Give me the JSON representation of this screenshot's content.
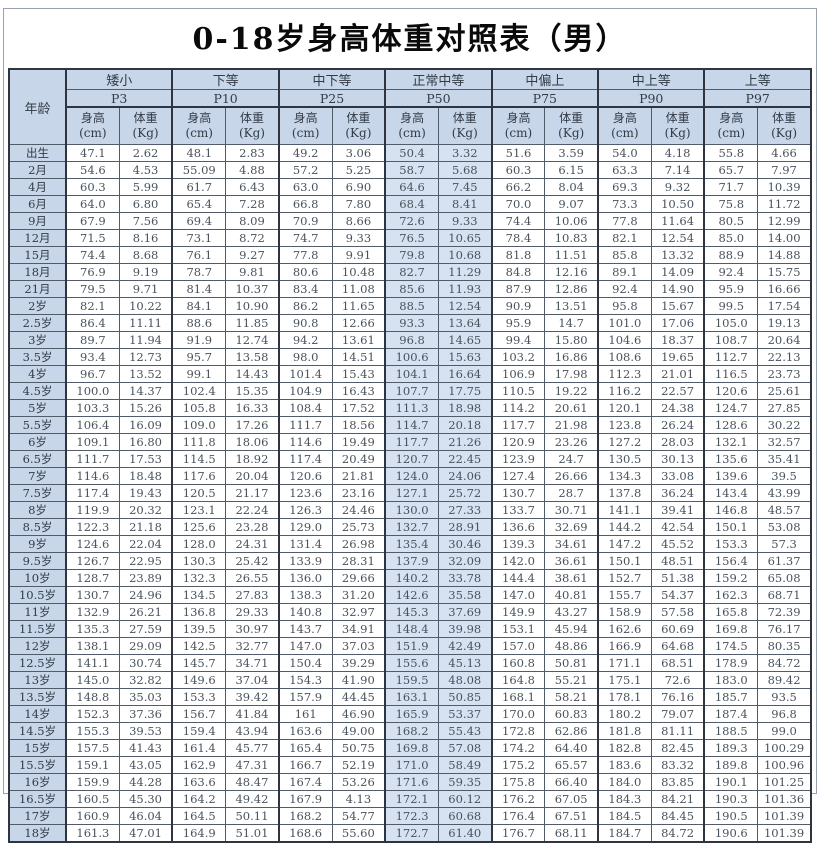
{
  "title": "0-18岁身高体重对照表（男）",
  "colors": {
    "header_blue": "#c8d6ea",
    "cell_blue": "#d6e2f1",
    "border_thin": "#515c68",
    "border_dark": "#2e3540",
    "frame_border": "#9aa3ad",
    "header_text": "#333c46",
    "num_text": "#49535d",
    "title_color": "#0a0a0a"
  },
  "table": {
    "age_header": "年龄",
    "height_label": "身高",
    "height_unit": "(cm)",
    "weight_label": "体重",
    "weight_unit": "(Kg)",
    "groups": [
      {
        "label": "矮小",
        "percentile": "P3"
      },
      {
        "label": "下等",
        "percentile": "P10"
      },
      {
        "label": "中下等",
        "percentile": "P25"
      },
      {
        "label": "正常中等",
        "percentile": "P50"
      },
      {
        "label": "中偏上",
        "percentile": "P75"
      },
      {
        "label": "中上等",
        "percentile": "P90"
      },
      {
        "label": "上等",
        "percentile": "P97"
      }
    ],
    "rows": [
      {
        "age": "出生",
        "values": [
          "47.1",
          "2.62",
          "48.1",
          "2.83",
          "49.2",
          "3.06",
          "50.4",
          "3.32",
          "51.6",
          "3.59",
          "54.0",
          "4.18",
          "55.8",
          "4.66"
        ]
      },
      {
        "age": "2月",
        "values": [
          "54.6",
          "4.53",
          "55.09",
          "4.88",
          "57.2",
          "5.25",
          "58.7",
          "5.68",
          "60.3",
          "6.15",
          "63.3",
          "7.14",
          "65.7",
          "7.97"
        ]
      },
      {
        "age": "4月",
        "values": [
          "60.3",
          "5.99",
          "61.7",
          "6.43",
          "63.0",
          "6.90",
          "64.6",
          "7.45",
          "66.2",
          "8.04",
          "69.3",
          "9.32",
          "71.7",
          "10.39"
        ]
      },
      {
        "age": "6月",
        "values": [
          "64.0",
          "6.80",
          "65.4",
          "7.28",
          "66.8",
          "7.80",
          "68.4",
          "8.41",
          "70.0",
          "9.07",
          "73.3",
          "10.50",
          "75.8",
          "11.72"
        ]
      },
      {
        "age": "9月",
        "values": [
          "67.9",
          "7.56",
          "69.4",
          "8.09",
          "70.9",
          "8.66",
          "72.6",
          "9.33",
          "74.4",
          "10.06",
          "77.8",
          "11.64",
          "80.5",
          "12.99"
        ]
      },
      {
        "age": "12月",
        "values": [
          "71.5",
          "8.16",
          "73.1",
          "8.72",
          "74.7",
          "9.33",
          "76.5",
          "10.65",
          "78.4",
          "10.83",
          "82.1",
          "12.54",
          "85.0",
          "14.00"
        ]
      },
      {
        "age": "15月",
        "values": [
          "74.4",
          "8.68",
          "76.1",
          "9.27",
          "77.8",
          "9.91",
          "79.8",
          "10.68",
          "81.8",
          "11.51",
          "85.8",
          "13.32",
          "88.9",
          "14.88"
        ]
      },
      {
        "age": "18月",
        "values": [
          "76.9",
          "9.19",
          "78.7",
          "9.81",
          "80.6",
          "10.48",
          "82.7",
          "11.29",
          "84.8",
          "12.16",
          "89.1",
          "14.09",
          "92.4",
          "15.75"
        ]
      },
      {
        "age": "21月",
        "values": [
          "79.5",
          "9.71",
          "81.4",
          "10.37",
          "83.4",
          "11.08",
          "85.6",
          "11.93",
          "87.9",
          "12.86",
          "92.4",
          "14.90",
          "95.9",
          "16.66"
        ]
      },
      {
        "age": "2岁",
        "values": [
          "82.1",
          "10.22",
          "84.1",
          "10.90",
          "86.2",
          "11.65",
          "88.5",
          "12.54",
          "90.9",
          "13.51",
          "95.8",
          "15.67",
          "99.5",
          "17.54"
        ]
      },
      {
        "age": "2.5岁",
        "values": [
          "86.4",
          "11.11",
          "88.6",
          "11.85",
          "90.8",
          "12.66",
          "93.3",
          "13.64",
          "95.9",
          "14.7",
          "101.0",
          "17.06",
          "105.0",
          "19.13"
        ]
      },
      {
        "age": "3岁",
        "values": [
          "89.7",
          "11.94",
          "91.9",
          "12.74",
          "94.2",
          "13.61",
          "96.8",
          "14.65",
          "99.4",
          "15.80",
          "104.6",
          "18.37",
          "108.7",
          "20.64"
        ]
      },
      {
        "age": "3.5岁",
        "values": [
          "93.4",
          "12.73",
          "95.7",
          "13.58",
          "98.0",
          "14.51",
          "100.6",
          "15.63",
          "103.2",
          "16.86",
          "108.6",
          "19.65",
          "112.7",
          "22.13"
        ]
      },
      {
        "age": "4岁",
        "values": [
          "96.7",
          "13.52",
          "99.1",
          "14.43",
          "101.4",
          "15.43",
          "104.1",
          "16.64",
          "106.9",
          "17.98",
          "112.3",
          "21.01",
          "116.5",
          "23.73"
        ]
      },
      {
        "age": "4.5岁",
        "values": [
          "100.0",
          "14.37",
          "102.4",
          "15.35",
          "104.9",
          "16.43",
          "107.7",
          "17.75",
          "110.5",
          "19.22",
          "116.2",
          "22.57",
          "120.6",
          "25.61"
        ]
      },
      {
        "age": "5岁",
        "values": [
          "103.3",
          "15.26",
          "105.8",
          "16.33",
          "108.4",
          "17.52",
          "111.3",
          "18.98",
          "114.2",
          "20.61",
          "120.1",
          "24.38",
          "124.7",
          "27.85"
        ]
      },
      {
        "age": "5.5岁",
        "values": [
          "106.4",
          "16.09",
          "109.0",
          "17.26",
          "111.7",
          "18.56",
          "114.7",
          "20.18",
          "117.7",
          "21.98",
          "123.8",
          "26.24",
          "128.6",
          "30.22"
        ]
      },
      {
        "age": "6岁",
        "values": [
          "109.1",
          "16.80",
          "111.8",
          "18.06",
          "114.6",
          "19.49",
          "117.7",
          "21.26",
          "120.9",
          "23.26",
          "127.2",
          "28.03",
          "132.1",
          "32.57"
        ]
      },
      {
        "age": "6.5岁",
        "values": [
          "111.7",
          "17.53",
          "114.5",
          "18.92",
          "117.4",
          "20.49",
          "120.7",
          "22.45",
          "123.9",
          "24.7",
          "130.5",
          "30.13",
          "135.6",
          "35.41"
        ]
      },
      {
        "age": "7岁",
        "values": [
          "114.6",
          "18.48",
          "117.6",
          "20.04",
          "120.6",
          "21.81",
          "124.0",
          "24.06",
          "127.4",
          "26.66",
          "134.3",
          "33.08",
          "139.6",
          "39.5"
        ]
      },
      {
        "age": "7.5岁",
        "values": [
          "117.4",
          "19.43",
          "120.5",
          "21.17",
          "123.6",
          "23.16",
          "127.1",
          "25.72",
          "130.7",
          "28.7",
          "137.8",
          "36.24",
          "143.4",
          "43.99"
        ]
      },
      {
        "age": "8岁",
        "values": [
          "119.9",
          "20.32",
          "123.1",
          "22.24",
          "126.3",
          "24.46",
          "130.0",
          "27.33",
          "133.7",
          "30.71",
          "141.1",
          "39.41",
          "146.8",
          "48.57"
        ]
      },
      {
        "age": "8.5岁",
        "values": [
          "122.3",
          "21.18",
          "125.6",
          "23.28",
          "129.0",
          "25.73",
          "132.7",
          "28.91",
          "136.6",
          "32.69",
          "144.2",
          "42.54",
          "150.1",
          "53.08"
        ]
      },
      {
        "age": "9岁",
        "values": [
          "124.6",
          "22.04",
          "128.0",
          "24.31",
          "131.4",
          "26.98",
          "135.4",
          "30.46",
          "139.3",
          "34.61",
          "147.2",
          "45.52",
          "153.3",
          "57.3"
        ]
      },
      {
        "age": "9.5岁",
        "values": [
          "126.7",
          "22.95",
          "130.3",
          "25.42",
          "133.9",
          "28.31",
          "137.9",
          "32.09",
          "142.0",
          "36.61",
          "150.1",
          "48.51",
          "156.4",
          "61.37"
        ]
      },
      {
        "age": "10岁",
        "values": [
          "128.7",
          "23.89",
          "132.3",
          "26.55",
          "136.0",
          "29.66",
          "140.2",
          "33.78",
          "144.4",
          "38.61",
          "152.7",
          "51.38",
          "159.2",
          "65.08"
        ]
      },
      {
        "age": "10.5岁",
        "values": [
          "130.7",
          "24.96",
          "134.5",
          "27.83",
          "138.3",
          "31.20",
          "142.6",
          "35.58",
          "147.0",
          "40.81",
          "155.7",
          "54.37",
          "162.3",
          "68.71"
        ]
      },
      {
        "age": "11岁",
        "values": [
          "132.9",
          "26.21",
          "136.8",
          "29.33",
          "140.8",
          "32.97",
          "145.3",
          "37.69",
          "149.9",
          "43.27",
          "158.9",
          "57.58",
          "165.8",
          "72.39"
        ]
      },
      {
        "age": "11.5岁",
        "values": [
          "135.3",
          "27.59",
          "139.5",
          "30.97",
          "143.7",
          "34.91",
          "148.4",
          "39.98",
          "153.1",
          "45.94",
          "162.6",
          "60.69",
          "169.8",
          "76.17"
        ]
      },
      {
        "age": "12岁",
        "values": [
          "138.1",
          "29.09",
          "142.5",
          "32.77",
          "147.0",
          "37.03",
          "151.9",
          "42.49",
          "157.0",
          "48.86",
          "166.9",
          "64.68",
          "174.5",
          "80.35"
        ]
      },
      {
        "age": "12.5岁",
        "values": [
          "141.1",
          "30.74",
          "145.7",
          "34.71",
          "150.4",
          "39.29",
          "155.6",
          "45.13",
          "160.8",
          "50.81",
          "171.1",
          "68.51",
          "178.9",
          "84.72"
        ]
      },
      {
        "age": "13岁",
        "values": [
          "145.0",
          "32.82",
          "149.6",
          "37.04",
          "154.3",
          "41.90",
          "159.5",
          "48.08",
          "164.8",
          "55.21",
          "175.1",
          "72.6",
          "183.0",
          "89.42"
        ]
      },
      {
        "age": "13.5岁",
        "values": [
          "148.8",
          "35.03",
          "153.3",
          "39.42",
          "157.9",
          "44.45",
          "163.1",
          "50.85",
          "168.1",
          "58.21",
          "178.1",
          "76.16",
          "185.7",
          "93.5"
        ]
      },
      {
        "age": "14岁",
        "values": [
          "152.3",
          "37.36",
          "156.7",
          "41.84",
          "161",
          "46.90",
          "165.9",
          "53.37",
          "170.0",
          "60.83",
          "180.2",
          "79.07",
          "187.4",
          "96.8"
        ]
      },
      {
        "age": "14.5岁",
        "values": [
          "155.3",
          "39.53",
          "159.4",
          "43.94",
          "163.6",
          "49.00",
          "168.2",
          "55.43",
          "172.8",
          "62.86",
          "181.8",
          "81.11",
          "188.5",
          "99.0"
        ]
      },
      {
        "age": "15岁",
        "values": [
          "157.5",
          "41.43",
          "161.4",
          "45.77",
          "165.4",
          "50.75",
          "169.8",
          "57.08",
          "174.2",
          "64.40",
          "182.8",
          "82.45",
          "189.3",
          "100.29"
        ]
      },
      {
        "age": "15.5岁",
        "values": [
          "159.1",
          "43.05",
          "162.9",
          "47.31",
          "166.7",
          "52.19",
          "171.0",
          "58.49",
          "175.2",
          "65.57",
          "183.6",
          "83.32",
          "189.8",
          "100.96"
        ]
      },
      {
        "age": "16岁",
        "values": [
          "159.9",
          "44.28",
          "163.6",
          "48.47",
          "167.4",
          "53.26",
          "171.6",
          "59.35",
          "175.8",
          "66.40",
          "184.0",
          "83.85",
          "190.1",
          "101.25"
        ]
      },
      {
        "age": "16.5岁",
        "values": [
          "160.5",
          "45.30",
          "164.2",
          "49.42",
          "167.9",
          "4.13",
          "172.1",
          "60.12",
          "176.2",
          "67.05",
          "184.3",
          "84.21",
          "190.3",
          "101.36"
        ]
      },
      {
        "age": "17岁",
        "values": [
          "160.9",
          "46.04",
          "164.5",
          "50.11",
          "168.2",
          "54.77",
          "172.3",
          "60.68",
          "176.4",
          "67.51",
          "184.5",
          "84.45",
          "190.5",
          "101.39"
        ]
      },
      {
        "age": "18岁",
        "values": [
          "161.3",
          "47.01",
          "164.9",
          "51.01",
          "168.6",
          "55.60",
          "172.7",
          "61.40",
          "176.7",
          "68.11",
          "184.7",
          "84.72",
          "190.6",
          "101.39"
        ]
      }
    ]
  }
}
